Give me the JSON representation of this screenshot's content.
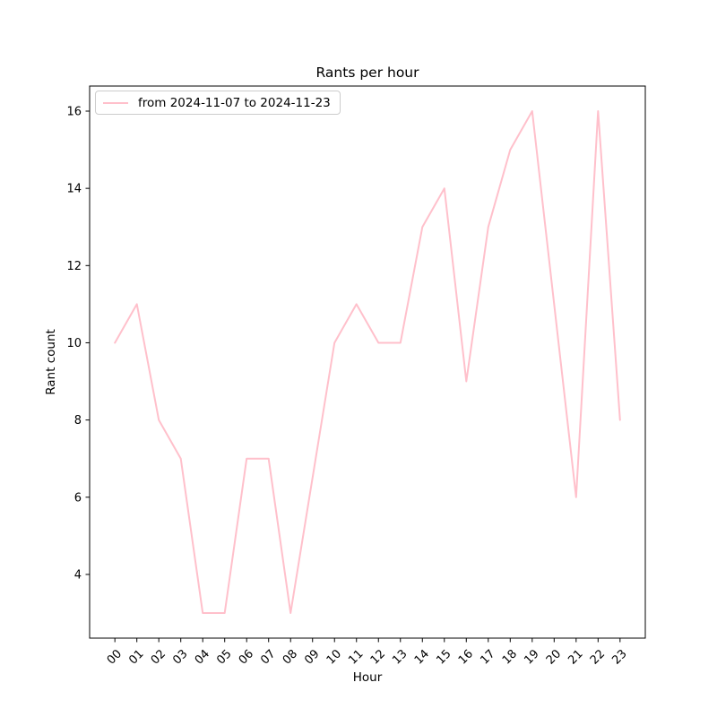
{
  "chart_data": {
    "type": "line",
    "title": "Rants per hour",
    "xlabel": "Hour",
    "ylabel": "Rant count",
    "grid": false,
    "legend_position": "upper left",
    "categories": [
      "00",
      "01",
      "02",
      "03",
      "04",
      "05",
      "06",
      "07",
      "08",
      "09",
      "10",
      "11",
      "12",
      "13",
      "14",
      "15",
      "16",
      "17",
      "18",
      "19",
      "20",
      "21",
      "22",
      "23"
    ],
    "yticks": [
      4,
      6,
      8,
      10,
      12,
      14,
      16
    ],
    "ylim": [
      2.35,
      16.65
    ],
    "series": [
      {
        "name": "from 2024-11-07 to 2024-11-23",
        "color": "#ffc0cb",
        "values": [
          10,
          11,
          8,
          7,
          3,
          3,
          7,
          7,
          3,
          null,
          10,
          11,
          10,
          10,
          13,
          14,
          9,
          13,
          15,
          16,
          null,
          6,
          16,
          8
        ]
      }
    ]
  },
  "colors": {
    "line": "#ffc0cb",
    "spine": "#000000",
    "legend_border": "#cccccc",
    "background": "#ffffff",
    "text": "#000000"
  }
}
